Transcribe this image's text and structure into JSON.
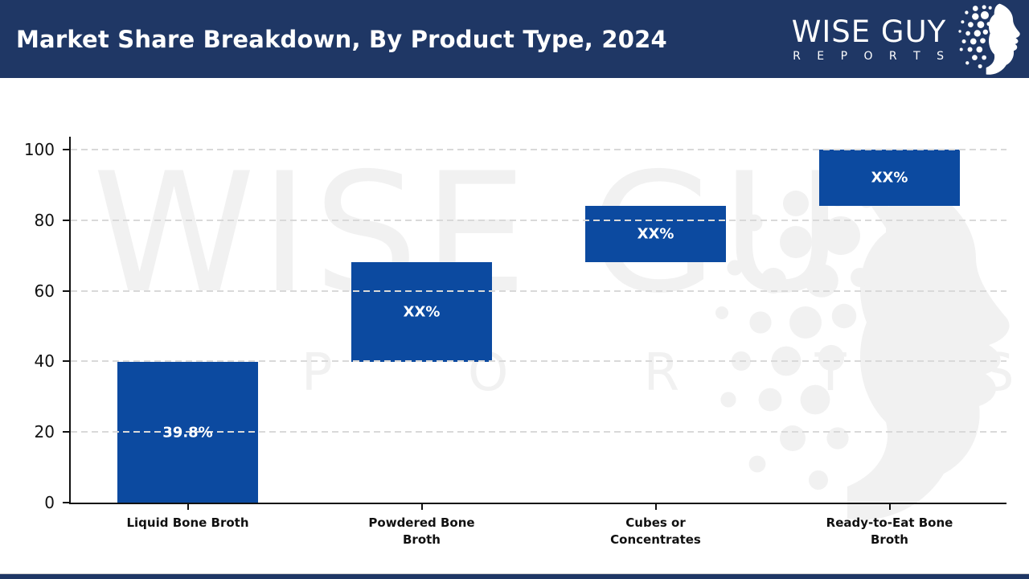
{
  "header": {
    "title": "Market Share Breakdown, By Product Type, 2024",
    "logo": {
      "line1": "WISE GUY",
      "line2": "R E P O R T S"
    }
  },
  "watermark": {
    "line1": "WISE GUY",
    "line2": "P O R T S"
  },
  "colors": {
    "header_bg": "#1F3765",
    "bar": "#0C4AA0",
    "grid": "#D9D9D9",
    "watermark": "#F1F1F1"
  },
  "chart_data": {
    "type": "bar",
    "subtype": "waterfall",
    "title": "Market Share Breakdown, By Product Type, 2024",
    "categories": [
      "Liquid Bone Broth",
      "Powdered Bone Broth",
      "Cubes or Concentrates",
      "Ready-to-Eat Bone Broth"
    ],
    "category_lines": [
      [
        "Liquid Bone Broth"
      ],
      [
        "Powdered Bone",
        "Broth"
      ],
      [
        "Cubes or",
        "Concentrates"
      ],
      [
        "Ready-to-Eat Bone",
        "Broth"
      ]
    ],
    "segments": [
      {
        "category": "Liquid Bone Broth",
        "start": 0,
        "end": 39.8,
        "label": "39.8%"
      },
      {
        "category": "Powdered Bone Broth",
        "start": 39.8,
        "end": 68,
        "label": "XX%"
      },
      {
        "category": "Cubes or Concentrates",
        "start": 68,
        "end": 84,
        "label": "XX%"
      },
      {
        "category": "Ready-to-Eat Bone Broth",
        "start": 84,
        "end": 100,
        "label": "XX%"
      }
    ],
    "xlabel": "",
    "ylabel": "",
    "ylim": [
      0,
      100
    ],
    "yticks": [
      0,
      20,
      40,
      60,
      80,
      100
    ],
    "grid": "dashed-horizontal",
    "legend": null,
    "bar_color": "#0C4AA0",
    "value_label_color": "#FFFFFF"
  }
}
